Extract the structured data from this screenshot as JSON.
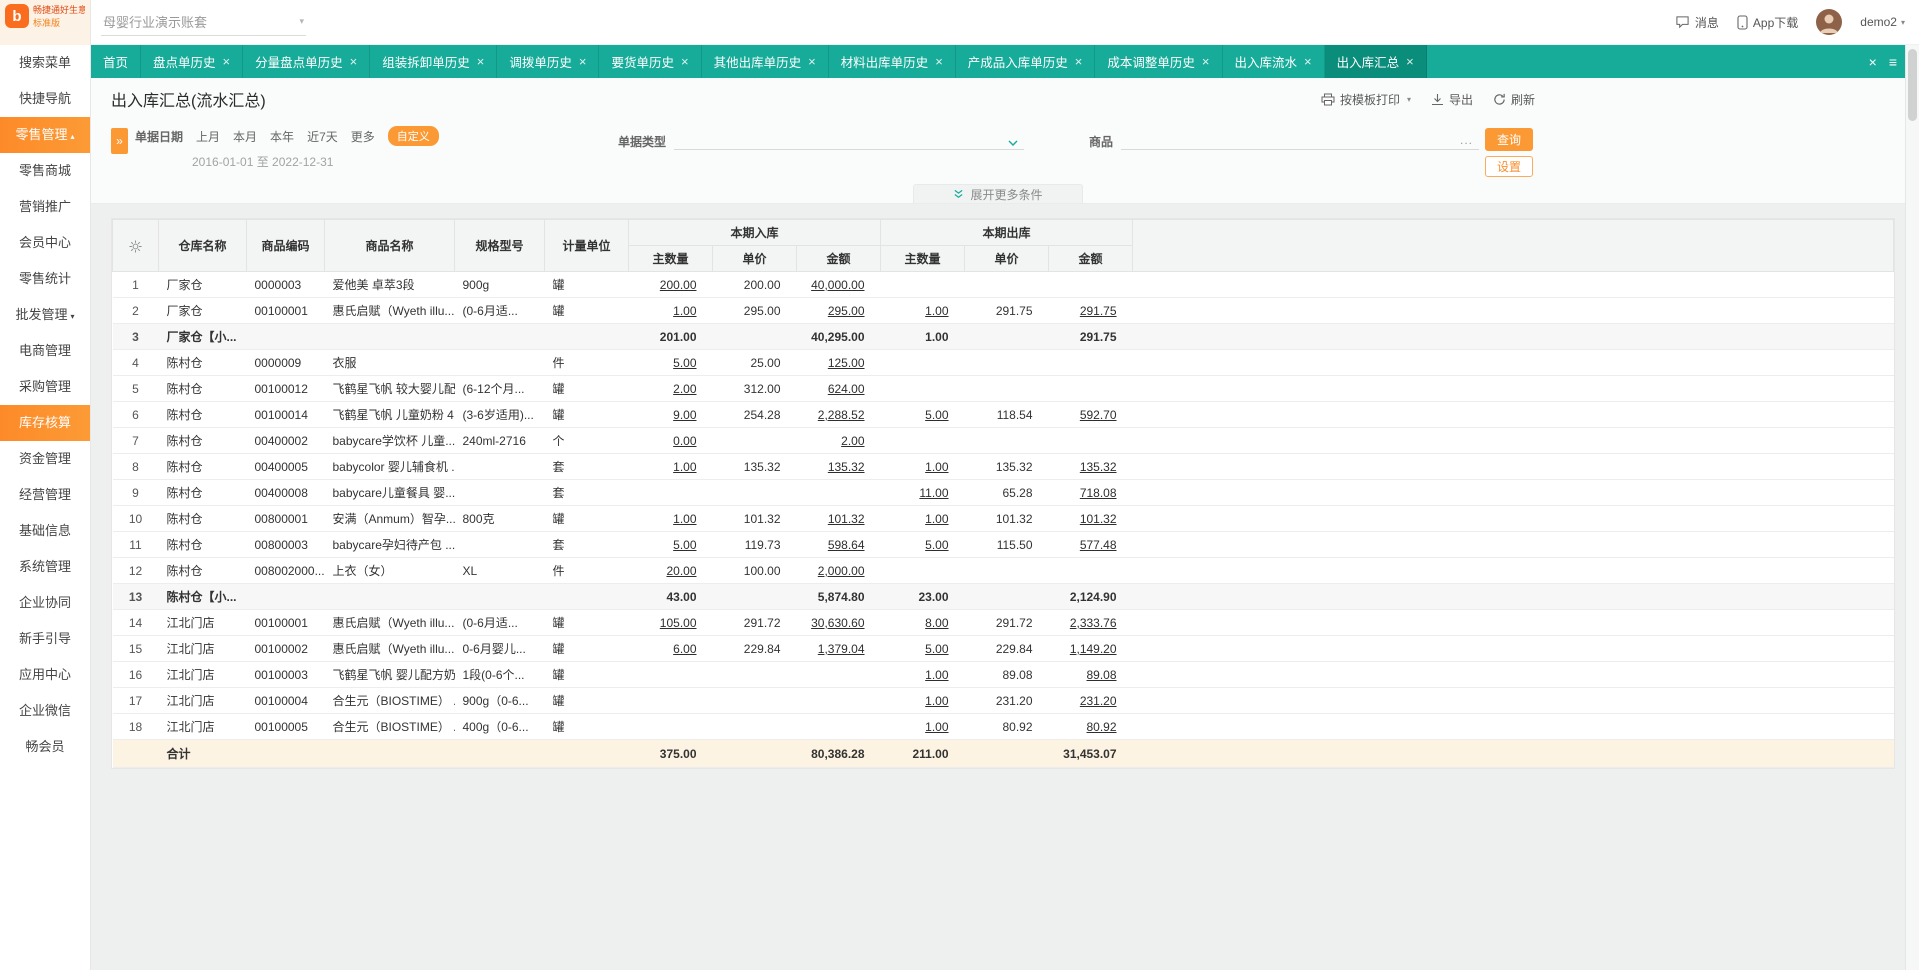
{
  "colors": {
    "teal": "#17ab99",
    "teal_dark": "#0b8d7c",
    "orange": "#fb9a35"
  },
  "logo": {
    "brand": "畅捷通好生意",
    "edition": "标准版",
    "mark": "b"
  },
  "topbar": {
    "account_dropdown": "母婴行业演示账套",
    "messages_label": "消息",
    "app_download_label": "App下载",
    "username": "demo2"
  },
  "tabbar": {
    "tabs": [
      {
        "label": "首页",
        "closable": false,
        "active": false
      },
      {
        "label": "盘点单历史",
        "closable": true,
        "active": false
      },
      {
        "label": "分量盘点单历史",
        "closable": true,
        "active": false
      },
      {
        "label": "组装拆卸单历史",
        "closable": true,
        "active": false
      },
      {
        "label": "调拨单历史",
        "closable": true,
        "active": false
      },
      {
        "label": "要货单历史",
        "closable": true,
        "active": false
      },
      {
        "label": "其他出库单历史",
        "closable": true,
        "active": false
      },
      {
        "label": "材料出库单历史",
        "closable": true,
        "active": false
      },
      {
        "label": "产成品入库单历史",
        "closable": true,
        "active": false
      },
      {
        "label": "成本调整单历史",
        "closable": true,
        "active": false
      },
      {
        "label": "出入库流水",
        "closable": true,
        "active": false
      },
      {
        "label": "出入库汇总",
        "closable": true,
        "active": true
      }
    ],
    "close_all_icon": "×",
    "tab_list_icon": "≡"
  },
  "sidebar": {
    "items": [
      {
        "label": "搜索菜单",
        "style": "plain"
      },
      {
        "label": "快捷导航",
        "style": "plain"
      },
      {
        "label": "零售管理",
        "style": "group-open",
        "arrow": "▴"
      },
      {
        "label": "零售商城",
        "style": "plain"
      },
      {
        "label": "营销推广",
        "style": "plain"
      },
      {
        "label": "会员中心",
        "style": "plain"
      },
      {
        "label": "零售统计",
        "style": "plain"
      },
      {
        "label": "批发管理",
        "style": "group",
        "arrow": "▾"
      },
      {
        "label": "电商管理",
        "style": "plain"
      },
      {
        "label": "采购管理",
        "style": "plain"
      },
      {
        "label": "库存核算",
        "style": "active"
      },
      {
        "label": "资金管理",
        "style": "plain"
      },
      {
        "label": "经营管理",
        "style": "plain"
      },
      {
        "label": "基础信息",
        "style": "plain"
      },
      {
        "label": "系统管理",
        "style": "plain"
      },
      {
        "label": "企业协同",
        "style": "plain"
      },
      {
        "label": "新手引导",
        "style": "plain"
      },
      {
        "label": "应用中心",
        "style": "plain"
      },
      {
        "label": "企业微信",
        "style": "plain"
      },
      {
        "label": "畅会员",
        "style": "plain"
      }
    ]
  },
  "page": {
    "title": "出入库汇总(流水汇总)",
    "print_label": "按模板打印",
    "export_label": "导出",
    "refresh_label": "刷新"
  },
  "filters": {
    "expand_collapse_icon": "»",
    "date_label": "单据日期",
    "date_options": [
      "上月",
      "本月",
      "本年",
      "近7天",
      "更多"
    ],
    "custom_badge": "自定义",
    "date_range": "2016-01-01 至 2022-12-31",
    "doc_type_label": "单据类型",
    "product_label": "商品",
    "product_ellipsis": "...",
    "query_button": "查询",
    "settings_button": "设置",
    "expand_more": "展开更多条件"
  },
  "table": {
    "left_headers": [
      "仓库名称",
      "商品编码",
      "商品名称",
      "规格型号",
      "计量单位"
    ],
    "group_headers": [
      {
        "label": "本期入库",
        "subs": [
          "主数量",
          "单价",
          "金额"
        ]
      },
      {
        "label": "本期出库",
        "subs": [
          "主数量",
          "单价",
          "金额"
        ]
      }
    ],
    "rows": [
      {
        "num": "1",
        "type": "detail",
        "warehouse": "厂家仓",
        "code": "0000003",
        "name": "爱他美 卓萃3段",
        "spec": "900g",
        "unit": "罐",
        "in_qty": "200.00",
        "in_price": "200.00",
        "in_amt": "40,000.00",
        "out_qty": "",
        "out_price": "",
        "out_amt": ""
      },
      {
        "num": "2",
        "type": "detail",
        "warehouse": "厂家仓",
        "code": "00100001",
        "name": "惠氏启赋（Wyeth illu...",
        "spec": "(0-6月适...",
        "unit": "罐",
        "in_qty": "1.00",
        "in_price": "295.00",
        "in_amt": "295.00",
        "out_qty": "1.00",
        "out_price": "291.75",
        "out_amt": "291.75"
      },
      {
        "num": "3",
        "type": "summary",
        "warehouse": "厂家仓【小...",
        "code": "",
        "name": "",
        "spec": "",
        "unit": "",
        "in_qty": "201.00",
        "in_price": "",
        "in_amt": "40,295.00",
        "out_qty": "1.00",
        "out_price": "",
        "out_amt": "291.75"
      },
      {
        "num": "4",
        "type": "detail",
        "warehouse": "陈村仓",
        "code": "0000009",
        "name": "衣服",
        "spec": "",
        "unit": "件",
        "in_qty": "5.00",
        "in_price": "25.00",
        "in_amt": "125.00",
        "out_qty": "",
        "out_price": "",
        "out_amt": ""
      },
      {
        "num": "5",
        "type": "detail",
        "warehouse": "陈村仓",
        "code": "00100012",
        "name": "飞鹤星飞帆 较大婴儿配...",
        "spec": "(6-12个月...",
        "unit": "罐",
        "in_qty": "2.00",
        "in_price": "312.00",
        "in_amt": "624.00",
        "out_qty": "",
        "out_price": "",
        "out_amt": ""
      },
      {
        "num": "6",
        "type": "detail",
        "warehouse": "陈村仓",
        "code": "00100014",
        "name": "飞鹤星飞帆 儿童奶粉 4...",
        "spec": "(3-6岁适用)...",
        "unit": "罐",
        "in_qty": "9.00",
        "in_price": "254.28",
        "in_amt": "2,288.52",
        "out_qty": "5.00",
        "out_price": "118.54",
        "out_amt": "592.70"
      },
      {
        "num": "7",
        "type": "detail",
        "warehouse": "陈村仓",
        "code": "00400002",
        "name": "babycare学饮杯 儿童...",
        "spec": "240ml-2716",
        "unit": "个",
        "in_qty": "0.00",
        "in_price": "",
        "in_amt": "2.00",
        "out_qty": "",
        "out_price": "",
        "out_amt": ""
      },
      {
        "num": "8",
        "type": "detail",
        "warehouse": "陈村仓",
        "code": "00400005",
        "name": "babycolor 婴儿辅食机 ...",
        "spec": "",
        "unit": "套",
        "in_qty": "1.00",
        "in_price": "135.32",
        "in_amt": "135.32",
        "out_qty": "1.00",
        "out_price": "135.32",
        "out_amt": "135.32"
      },
      {
        "num": "9",
        "type": "detail",
        "warehouse": "陈村仓",
        "code": "00400008",
        "name": "babycare儿童餐具 婴...",
        "spec": "",
        "unit": "套",
        "in_qty": "",
        "in_price": "",
        "in_amt": "",
        "out_qty": "11.00",
        "out_price": "65.28",
        "out_amt": "718.08"
      },
      {
        "num": "10",
        "type": "detail",
        "warehouse": "陈村仓",
        "code": "00800001",
        "name": "安满（Anmum）智孕...",
        "spec": "800克",
        "unit": "罐",
        "in_qty": "1.00",
        "in_price": "101.32",
        "in_amt": "101.32",
        "out_qty": "1.00",
        "out_price": "101.32",
        "out_amt": "101.32"
      },
      {
        "num": "11",
        "type": "detail",
        "warehouse": "陈村仓",
        "code": "00800003",
        "name": "babycare孕妇待产包 ...",
        "spec": "",
        "unit": "套",
        "in_qty": "5.00",
        "in_price": "119.73",
        "in_amt": "598.64",
        "out_qty": "5.00",
        "out_price": "115.50",
        "out_amt": "577.48"
      },
      {
        "num": "12",
        "type": "detail",
        "warehouse": "陈村仓",
        "code": "008002000...",
        "name": "上衣（女）",
        "spec": "XL",
        "unit": "件",
        "in_qty": "20.00",
        "in_price": "100.00",
        "in_amt": "2,000.00",
        "out_qty": "",
        "out_price": "",
        "out_amt": ""
      },
      {
        "num": "13",
        "type": "summary",
        "warehouse": "陈村仓【小...",
        "code": "",
        "name": "",
        "spec": "",
        "unit": "",
        "in_qty": "43.00",
        "in_price": "",
        "in_amt": "5,874.80",
        "out_qty": "23.00",
        "out_price": "",
        "out_amt": "2,124.90"
      },
      {
        "num": "14",
        "type": "detail",
        "warehouse": "江北门店",
        "code": "00100001",
        "name": "惠氏启赋（Wyeth illu...",
        "spec": "(0-6月适...",
        "unit": "罐",
        "in_qty": "105.00",
        "in_price": "291.72",
        "in_amt": "30,630.60",
        "out_qty": "8.00",
        "out_price": "291.72",
        "out_amt": "2,333.76"
      },
      {
        "num": "15",
        "type": "detail",
        "warehouse": "江北门店",
        "code": "00100002",
        "name": "惠氏启赋（Wyeth illu...",
        "spec": "0-6月婴儿...",
        "unit": "罐",
        "in_qty": "6.00",
        "in_price": "229.84",
        "in_amt": "1,379.04",
        "out_qty": "5.00",
        "out_price": "229.84",
        "out_amt": "1,149.20"
      },
      {
        "num": "16",
        "type": "detail",
        "warehouse": "江北门店",
        "code": "00100003",
        "name": "飞鹤星飞帆 婴儿配方奶...",
        "spec": "1段(0-6个...",
        "unit": "罐",
        "in_qty": "",
        "in_price": "",
        "in_amt": "",
        "out_qty": "1.00",
        "out_price": "89.08",
        "out_amt": "89.08"
      },
      {
        "num": "17",
        "type": "detail",
        "warehouse": "江北门店",
        "code": "00100004",
        "name": "合生元（BIOSTIME） ...",
        "spec": "900g（0-6...",
        "unit": "罐",
        "in_qty": "",
        "in_price": "",
        "in_amt": "",
        "out_qty": "1.00",
        "out_price": "231.20",
        "out_amt": "231.20"
      },
      {
        "num": "18",
        "type": "detail",
        "warehouse": "江北门店",
        "code": "00100005",
        "name": "合生元（BIOSTIME） ...",
        "spec": "400g（0-6...",
        "unit": "罐",
        "in_qty": "",
        "in_price": "",
        "in_amt": "",
        "out_qty": "1.00",
        "out_price": "80.92",
        "out_amt": "80.92"
      }
    ],
    "total": {
      "label": "合计",
      "in_qty": "375.00",
      "in_price": "",
      "in_amt": "80,386.28",
      "out_qty": "211.00",
      "out_price": "",
      "out_amt": "31,453.07"
    }
  }
}
